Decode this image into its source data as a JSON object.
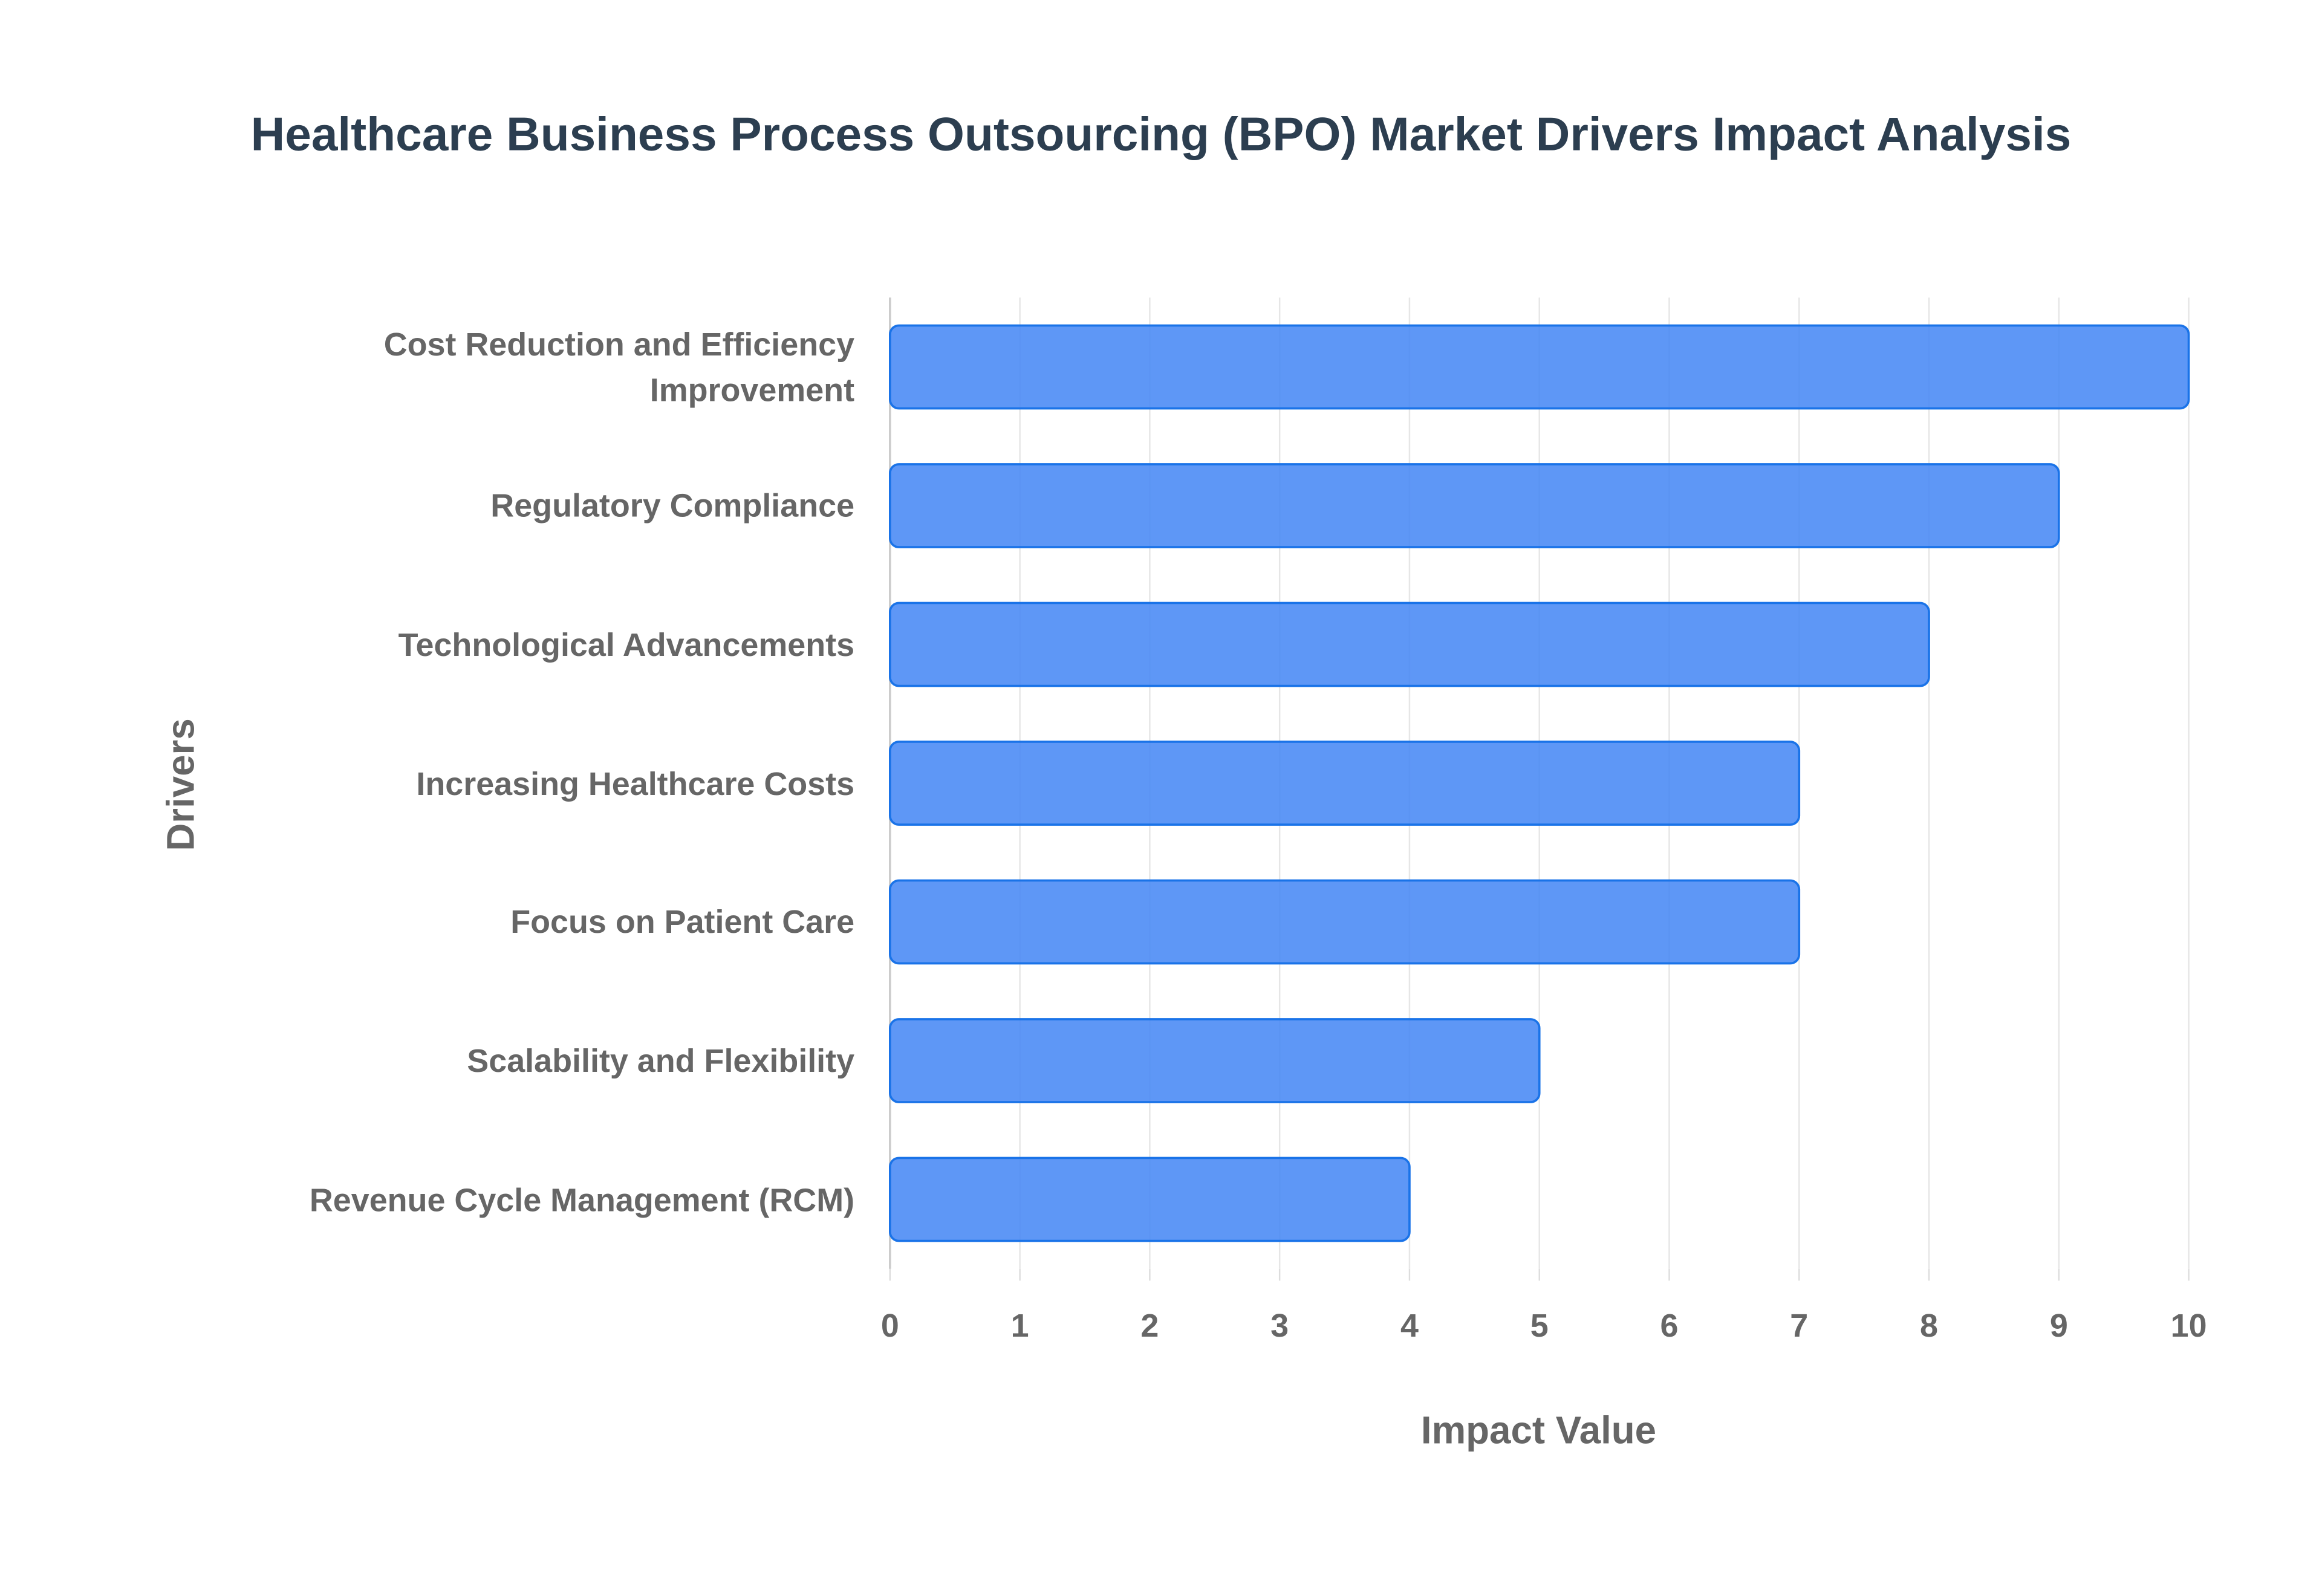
{
  "chart_data": {
    "type": "bar",
    "orientation": "horizontal",
    "title": "Healthcare Business Process Outsourcing (BPO) Market Drivers Impact Analysis",
    "x_label": "Impact Value",
    "y_label": "Drivers",
    "categories": [
      "Cost Reduction and Efficiency Improvement",
      "Regulatory Compliance",
      "Technological Advancements",
      "Increasing Healthcare Costs",
      "Focus on Patient Care",
      "Scalability and Flexibility",
      "Revenue Cycle Management (RCM)"
    ],
    "values": [
      10,
      9,
      8,
      7,
      7,
      5,
      4
    ],
    "color": "#4285f4",
    "xlim": [
      0,
      10
    ],
    "xticks": [
      0,
      1,
      2,
      3,
      4,
      5,
      6,
      7,
      8,
      9,
      10
    ],
    "grid": true
  }
}
